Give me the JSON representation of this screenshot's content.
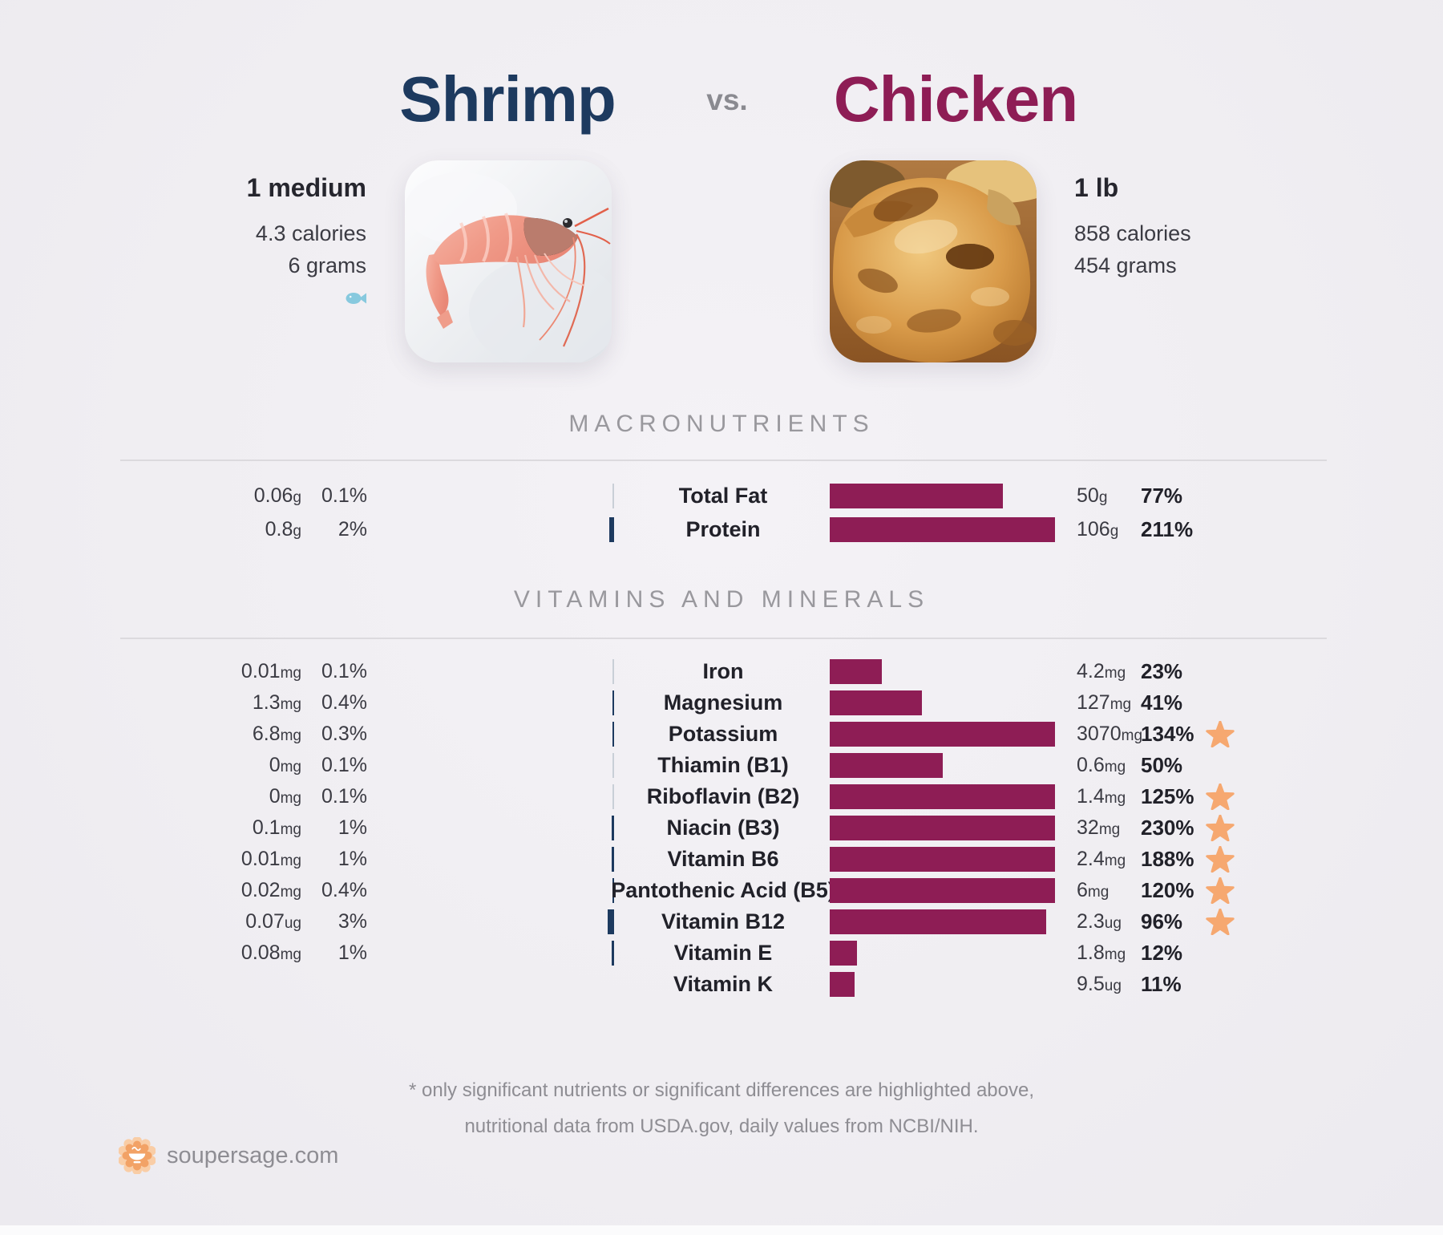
{
  "header": {
    "title_left": "Shrimp",
    "separator": "vs.",
    "title_right": "Chicken"
  },
  "servings": {
    "shrimp": {
      "size": "1 medium",
      "calories": "4.3 calories",
      "weight": "6 grams"
    },
    "chicken": {
      "size": "1 lb",
      "calories": "858 calories",
      "weight": "454 grams"
    }
  },
  "colors": {
    "shrimp_accent": "#1d3a5f",
    "chicken_accent": "#8e1d55",
    "bar_faint": "#c9cfd7",
    "star": "#f6a870"
  },
  "footnote": {
    "line1": "* only significant nutrients or significant differences are highlighted above,",
    "line2": "nutritional data from USDA.gov, daily values from NCBI/NIH."
  },
  "branding": {
    "site": "soupersage.com"
  },
  "chart_data": [
    {
      "type": "bar",
      "title": "MACRONUTRIENTS",
      "orientation": "horizontal",
      "legend_position": "none",
      "grid": false,
      "percent_axis_cap": 100,
      "series_names": [
        "Shrimp (1 medium)",
        "Chicken (1 lb)"
      ],
      "rows": [
        {
          "label": "Total Fat",
          "shrimp": {
            "num": "0.06",
            "unit": "g",
            "dv_label": "0.1%",
            "dv": 0.1
          },
          "chicken": {
            "num": "50",
            "unit": "g",
            "dv_label": "77%",
            "dv": 77
          },
          "star": false
        },
        {
          "label": "Protein",
          "shrimp": {
            "num": "0.8",
            "unit": "g",
            "dv_label": "2%",
            "dv": 2
          },
          "chicken": {
            "num": "106",
            "unit": "g",
            "dv_label": "211%",
            "dv": 211
          },
          "star": false
        }
      ]
    },
    {
      "type": "bar",
      "title": "VITAMINS AND MINERALS",
      "orientation": "horizontal",
      "legend_position": "none",
      "grid": false,
      "percent_axis_cap": 100,
      "series_names": [
        "Shrimp (1 medium)",
        "Chicken (1 lb)"
      ],
      "rows": [
        {
          "label": "Iron",
          "shrimp": {
            "num": "0.01",
            "unit": "mg",
            "dv_label": "0.1%",
            "dv": 0.1
          },
          "chicken": {
            "num": "4.2",
            "unit": "mg",
            "dv_label": "23%",
            "dv": 23
          },
          "star": false
        },
        {
          "label": "Magnesium",
          "shrimp": {
            "num": "1.3",
            "unit": "mg",
            "dv_label": "0.4%",
            "dv": 0.4
          },
          "chicken": {
            "num": "127",
            "unit": "mg",
            "dv_label": "41%",
            "dv": 41
          },
          "star": false
        },
        {
          "label": "Potassium",
          "shrimp": {
            "num": "6.8",
            "unit": "mg",
            "dv_label": "0.3%",
            "dv": 0.3
          },
          "chicken": {
            "num": "3070",
            "unit": "mg",
            "dv_label": "134%",
            "dv": 134
          },
          "star": true
        },
        {
          "label": "Thiamin (B1)",
          "shrimp": {
            "num": "0",
            "unit": "mg",
            "dv_label": "0.1%",
            "dv": 0.1
          },
          "chicken": {
            "num": "0.6",
            "unit": "mg",
            "dv_label": "50%",
            "dv": 50
          },
          "star": false
        },
        {
          "label": "Riboflavin (B2)",
          "shrimp": {
            "num": "0",
            "unit": "mg",
            "dv_label": "0.1%",
            "dv": 0.1
          },
          "chicken": {
            "num": "1.4",
            "unit": "mg",
            "dv_label": "125%",
            "dv": 125
          },
          "star": true
        },
        {
          "label": "Niacin (B3)",
          "shrimp": {
            "num": "0.1",
            "unit": "mg",
            "dv_label": "1%",
            "dv": 1
          },
          "chicken": {
            "num": "32",
            "unit": "mg",
            "dv_label": "230%",
            "dv": 230
          },
          "star": true
        },
        {
          "label": "Vitamin B6",
          "shrimp": {
            "num": "0.01",
            "unit": "mg",
            "dv_label": "1%",
            "dv": 1
          },
          "chicken": {
            "num": "2.4",
            "unit": "mg",
            "dv_label": "188%",
            "dv": 188
          },
          "star": true
        },
        {
          "label": "Pantothenic Acid (B5)",
          "shrimp": {
            "num": "0.02",
            "unit": "mg",
            "dv_label": "0.4%",
            "dv": 0.4
          },
          "chicken": {
            "num": "6",
            "unit": "mg",
            "dv_label": "120%",
            "dv": 120
          },
          "star": true
        },
        {
          "label": "Vitamin B12",
          "shrimp": {
            "num": "0.07",
            "unit": "ug",
            "dv_label": "3%",
            "dv": 3
          },
          "chicken": {
            "num": "2.3",
            "unit": "ug",
            "dv_label": "96%",
            "dv": 96
          },
          "star": true
        },
        {
          "label": "Vitamin E",
          "shrimp": {
            "num": "0.08",
            "unit": "mg",
            "dv_label": "1%",
            "dv": 1
          },
          "chicken": {
            "num": "1.8",
            "unit": "mg",
            "dv_label": "12%",
            "dv": 12
          },
          "star": false
        },
        {
          "label": "Vitamin K",
          "shrimp": null,
          "chicken": {
            "num": "9.5",
            "unit": "ug",
            "dv_label": "11%",
            "dv": 11
          },
          "star": false
        }
      ]
    }
  ]
}
